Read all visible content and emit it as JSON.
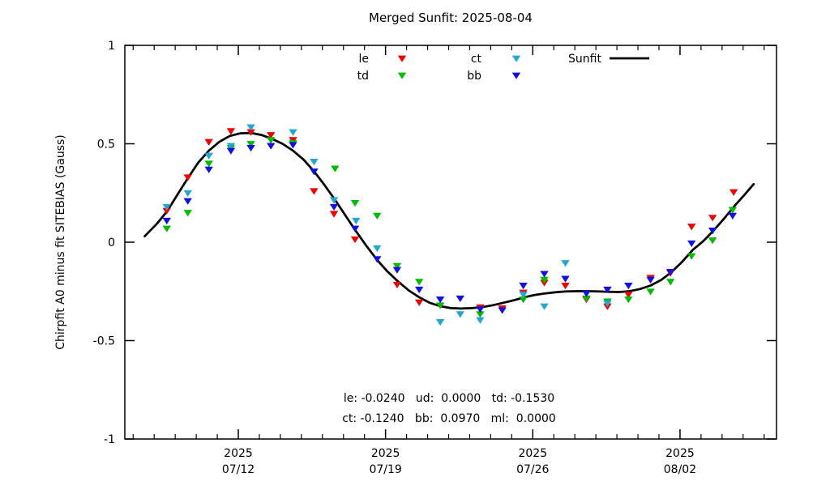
{
  "chart_data": {
    "type": "scatter",
    "title": "Merged Sunfit: 2025-08-04",
    "grid": false,
    "marker": "filled-triangle-down",
    "x_axis": {
      "unit": "date (days relative to 2025-07-12 tick)",
      "range_days": [
        -5.4,
        25.6
      ],
      "minor_tick_interval_days": 1,
      "ticks": [
        {
          "offset_days": 0,
          "line1": "2025",
          "line2": "07/12"
        },
        {
          "offset_days": 7,
          "line1": "2025",
          "line2": "07/19"
        },
        {
          "offset_days": 14,
          "line1": "2025",
          "line2": "07/26"
        },
        {
          "offset_days": 21,
          "line1": "2025",
          "line2": "08/02"
        }
      ]
    },
    "y_axis": {
      "label": "Chirpfit A0 minus fit SITEBIAS (Gauss)",
      "range": [
        -1,
        1
      ],
      "ticks": [
        {
          "value": 1,
          "label": "1"
        },
        {
          "value": 0.5,
          "label": "0.5"
        },
        {
          "value": 0,
          "label": "0"
        },
        {
          "value": -0.5,
          "label": "-0.5"
        },
        {
          "value": -1,
          "label": "-1"
        }
      ]
    },
    "legend": {
      "position": "top-inside",
      "entries": [
        "le",
        "td",
        "ct",
        "bb",
        "Sunfit"
      ]
    },
    "series": [
      {
        "name": "le",
        "color": "#ee0000",
        "marker": "filled-triangle-down",
        "points": [
          [
            -3.4,
            0.16
          ],
          [
            -2.4,
            0.33
          ],
          [
            -1.4,
            0.51
          ],
          [
            -0.35,
            0.565
          ],
          [
            0.6,
            0.56
          ],
          [
            1.55,
            0.545
          ],
          [
            2.6,
            0.52
          ],
          [
            3.6,
            0.26
          ],
          [
            4.55,
            0.145
          ],
          [
            5.55,
            0.015
          ],
          [
            7.55,
            -0.215
          ],
          [
            8.6,
            -0.305
          ],
          [
            11.5,
            -0.33
          ],
          [
            12.55,
            -0.335
          ],
          [
            13.55,
            -0.255
          ],
          [
            14.55,
            -0.205
          ],
          [
            15.55,
            -0.22
          ],
          [
            16.55,
            -0.29
          ],
          [
            17.55,
            -0.325
          ],
          [
            18.55,
            -0.265
          ],
          [
            19.6,
            -0.18
          ],
          [
            20.55,
            -0.155
          ],
          [
            21.55,
            0.08
          ],
          [
            22.55,
            0.125
          ],
          [
            23.55,
            0.255
          ]
        ]
      },
      {
        "name": "td",
        "color": "#00bb00",
        "marker": "filled-triangle-down",
        "points": [
          [
            -3.4,
            0.07
          ],
          [
            -2.4,
            0.15
          ],
          [
            -1.4,
            0.4
          ],
          [
            -0.35,
            0.48
          ],
          [
            0.6,
            0.5
          ],
          [
            1.55,
            0.52
          ],
          [
            2.6,
            0.505
          ],
          [
            3.6,
            0.36
          ],
          [
            4.6,
            0.375
          ],
          [
            5.55,
            0.2
          ],
          [
            6.6,
            0.135
          ],
          [
            7.55,
            -0.12
          ],
          [
            8.6,
            -0.2
          ],
          [
            9.6,
            -0.32
          ],
          [
            11.5,
            -0.365
          ],
          [
            13.55,
            -0.29
          ],
          [
            14.55,
            -0.19
          ],
          [
            16.55,
            -0.285
          ],
          [
            17.55,
            -0.3
          ],
          [
            18.55,
            -0.29
          ],
          [
            19.6,
            -0.25
          ],
          [
            20.55,
            -0.2
          ],
          [
            21.55,
            -0.07
          ],
          [
            22.55,
            0.01
          ],
          [
            23.5,
            0.165
          ]
        ]
      },
      {
        "name": "ct",
        "color": "#23a7cf",
        "marker": "filled-triangle-down",
        "points": [
          [
            -3.4,
            0.18
          ],
          [
            -2.4,
            0.25
          ],
          [
            -1.4,
            0.44
          ],
          [
            -0.35,
            0.49
          ],
          [
            0.6,
            0.585
          ],
          [
            2.6,
            0.56
          ],
          [
            3.6,
            0.41
          ],
          [
            4.55,
            0.215
          ],
          [
            5.6,
            0.11
          ],
          [
            6.6,
            -0.03
          ],
          [
            9.6,
            -0.405
          ],
          [
            10.55,
            -0.365
          ],
          [
            11.5,
            -0.395
          ],
          [
            13.55,
            -0.265
          ],
          [
            14.55,
            -0.325
          ],
          [
            15.55,
            -0.105
          ],
          [
            17.55,
            -0.31
          ]
        ]
      },
      {
        "name": "bb",
        "color": "#1010e0",
        "marker": "filled-triangle-down",
        "points": [
          [
            -3.4,
            0.11
          ],
          [
            -2.4,
            0.21
          ],
          [
            -1.4,
            0.37
          ],
          [
            -0.35,
            0.465
          ],
          [
            0.6,
            0.48
          ],
          [
            1.55,
            0.49
          ],
          [
            2.6,
            0.495
          ],
          [
            3.6,
            0.36
          ],
          [
            4.55,
            0.18
          ],
          [
            5.55,
            0.07
          ],
          [
            6.6,
            -0.085
          ],
          [
            7.55,
            -0.14
          ],
          [
            8.6,
            -0.24
          ],
          [
            9.6,
            -0.29
          ],
          [
            10.55,
            -0.285
          ],
          [
            11.5,
            -0.34
          ],
          [
            12.55,
            -0.345
          ],
          [
            13.55,
            -0.22
          ],
          [
            14.55,
            -0.16
          ],
          [
            15.55,
            -0.185
          ],
          [
            16.55,
            -0.26
          ],
          [
            17.55,
            -0.24
          ],
          [
            18.55,
            -0.22
          ],
          [
            19.6,
            -0.19
          ],
          [
            20.55,
            -0.15
          ],
          [
            21.55,
            -0.005
          ],
          [
            22.55,
            0.06
          ],
          [
            23.5,
            0.135
          ]
        ]
      }
    ],
    "fit_line": {
      "name": "Sunfit",
      "color": "#000000",
      "points": [
        [
          -4.45,
          0.03
        ],
        [
          -3.9,
          0.09
        ],
        [
          -3.4,
          0.155
        ],
        [
          -2.9,
          0.24
        ],
        [
          -2.4,
          0.325
        ],
        [
          -1.9,
          0.405
        ],
        [
          -1.4,
          0.465
        ],
        [
          -0.9,
          0.51
        ],
        [
          -0.4,
          0.54
        ],
        [
          0.1,
          0.553
        ],
        [
          0.6,
          0.555
        ],
        [
          1.1,
          0.545
        ],
        [
          1.6,
          0.525
        ],
        [
          2.1,
          0.5
        ],
        [
          2.6,
          0.465
        ],
        [
          3.1,
          0.42
        ],
        [
          3.6,
          0.36
        ],
        [
          4.1,
          0.29
        ],
        [
          4.6,
          0.215
        ],
        [
          5.1,
          0.135
        ],
        [
          5.6,
          0.055
        ],
        [
          6.1,
          -0.02
        ],
        [
          6.6,
          -0.09
        ],
        [
          7.1,
          -0.15
        ],
        [
          7.6,
          -0.2
        ],
        [
          8.1,
          -0.245
        ],
        [
          8.6,
          -0.28
        ],
        [
          9.1,
          -0.308
        ],
        [
          9.6,
          -0.325
        ],
        [
          10.1,
          -0.335
        ],
        [
          10.6,
          -0.337
        ],
        [
          11.1,
          -0.335
        ],
        [
          11.6,
          -0.33
        ],
        [
          12.1,
          -0.32
        ],
        [
          12.6,
          -0.308
        ],
        [
          13.1,
          -0.295
        ],
        [
          13.6,
          -0.28
        ],
        [
          14.1,
          -0.268
        ],
        [
          14.6,
          -0.26
        ],
        [
          15.1,
          -0.254
        ],
        [
          15.6,
          -0.25
        ],
        [
          16.1,
          -0.249
        ],
        [
          16.6,
          -0.249
        ],
        [
          17.1,
          -0.25
        ],
        [
          17.6,
          -0.252
        ],
        [
          18.1,
          -0.253
        ],
        [
          18.6,
          -0.249
        ],
        [
          19.1,
          -0.238
        ],
        [
          19.6,
          -0.22
        ],
        [
          20.1,
          -0.192
        ],
        [
          20.6,
          -0.152
        ],
        [
          21.1,
          -0.1
        ],
        [
          21.6,
          -0.04
        ],
        [
          22.1,
          0.005
        ],
        [
          22.6,
          0.06
        ],
        [
          23.1,
          0.12
        ],
        [
          23.6,
          0.185
        ],
        [
          24.1,
          0.245
        ],
        [
          24.5,
          0.295
        ]
      ]
    },
    "annotations": {
      "line1": "le: -0.0240   ud:  0.0000   td: -0.1530",
      "line2": "ct: -0.1240   bb:  0.0970   ml:  0.0000"
    }
  }
}
